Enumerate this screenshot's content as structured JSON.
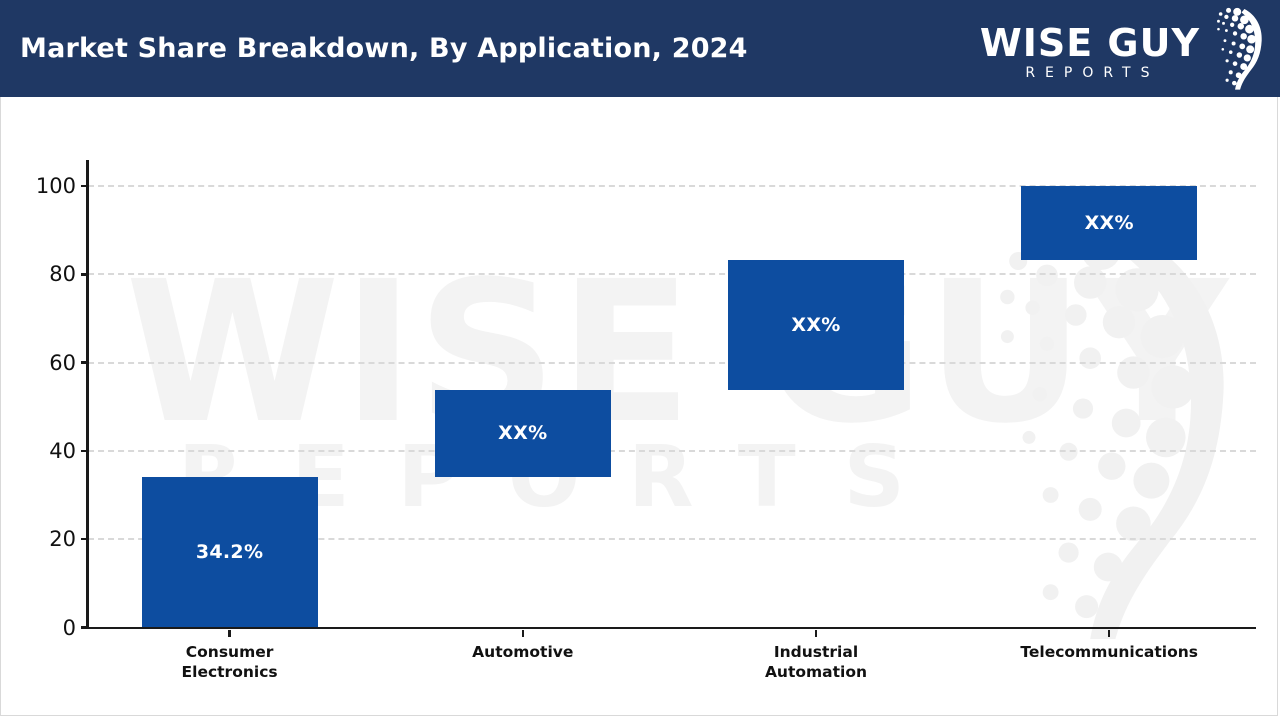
{
  "header": {
    "title": "Market Share Breakdown, By Application, 2024",
    "bg_color": "#1F3864",
    "logo": {
      "line1": "WISE GUY",
      "line2": "REPORTS"
    }
  },
  "watermark": {
    "line1": "WISE GUY",
    "line2": "REPORTS",
    "color": "#F3F3F3"
  },
  "chart_data": {
    "type": "bar",
    "subtype": "waterfall",
    "title": "Market Share Breakdown, By Application, 2024",
    "xlabel": "",
    "ylabel": "",
    "categories": [
      "Consumer Electronics",
      "Automotive",
      "Industrial Automation",
      "Telecommunications"
    ],
    "segments": [
      {
        "category": "Consumer Electronics",
        "label_lines": [
          "Consumer",
          "Electronics"
        ],
        "start": 0,
        "end": 34.2,
        "label": "34.2%"
      },
      {
        "category": "Automotive",
        "label_lines": [
          "Automotive"
        ],
        "start": 34.2,
        "end": 53.9,
        "label": "XX%"
      },
      {
        "category": "Industrial Automation",
        "label_lines": [
          "Industrial",
          "Automation"
        ],
        "start": 53.9,
        "end": 83.2,
        "label": "XX%"
      },
      {
        "category": "Telecommunications",
        "label_lines": [
          "Telecommunications"
        ],
        "start": 83.2,
        "end": 100,
        "label": "XX%"
      }
    ],
    "yticks": [
      0,
      20,
      40,
      60,
      80,
      100
    ],
    "ylim": [
      0,
      106
    ],
    "grid": "horizontal-dashed",
    "legend": "none",
    "bar_color": "#0D4DA0",
    "label_color": "#ffffff",
    "axis_color": "#1a1a1a",
    "gridline_color": "#d9d9d9"
  }
}
